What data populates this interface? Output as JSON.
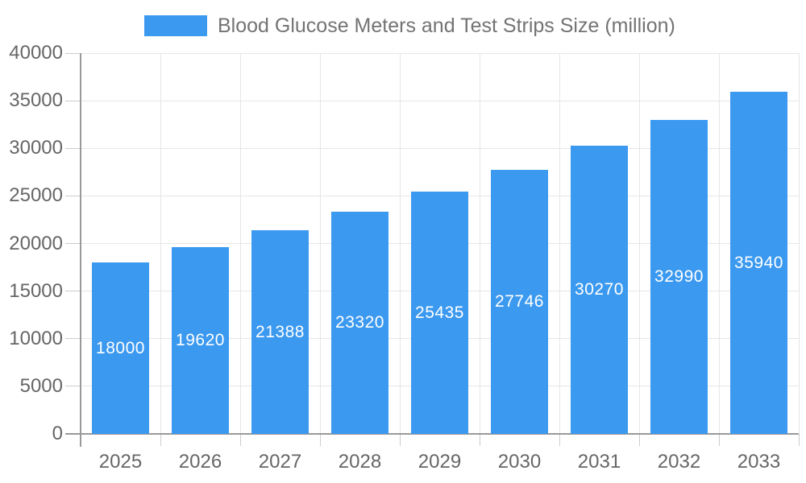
{
  "chart_data": {
    "type": "bar",
    "title": "Blood Glucose Meters and Test Strips Size (million)",
    "categories": [
      "2025",
      "2026",
      "2027",
      "2028",
      "2029",
      "2030",
      "2031",
      "2032",
      "2033"
    ],
    "values": [
      18000,
      19620,
      21388,
      23320,
      25435,
      27746,
      30270,
      32990,
      35940
    ],
    "bar_labels": [
      "18000",
      "19620",
      "21388",
      "23320",
      "25435",
      "27746",
      "30270",
      "32990",
      "35940"
    ],
    "xlabel": "",
    "ylabel": "",
    "ylim": [
      0,
      40000
    ],
    "ytick_step": 5000,
    "ytick_labels": [
      "0",
      "5000",
      "10000",
      "15000",
      "20000",
      "25000",
      "30000",
      "35000",
      "40000"
    ],
    "grid": true,
    "legend_position": "top",
    "value_label_position": "centered-inside-bar"
  },
  "colors": {
    "bar": "#3B99F0",
    "gridline": "#E6E6E6",
    "tick": "#CCCCCC",
    "axis": "#999999",
    "axis_label": "#666666",
    "bar_label": "#FFFFFF",
    "legend_text": "#737373",
    "background": "#FFFFFF"
  }
}
